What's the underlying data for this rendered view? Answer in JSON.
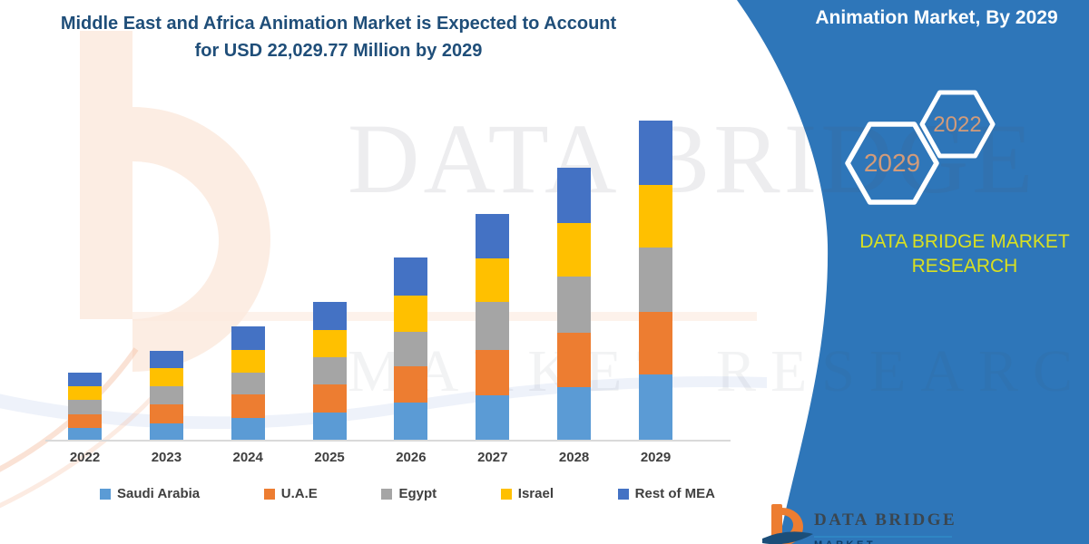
{
  "header": {
    "title_line1": "Middle East and Africa Animation Market is Expected to Account",
    "title_line2": "for USD 22,029.77 Million by 2029",
    "title_color": "#1f4e79"
  },
  "side_panel": {
    "heading": "Animation Market, By 2029",
    "panel_color": "#2e76b9",
    "hexagons": [
      {
        "label": "2029"
      },
      {
        "label": "2022"
      }
    ],
    "hexagon_label_color": "#d29b7a",
    "brand_line1": "DATA BRIDGE MARKET",
    "brand_line2": "RESEARCH",
    "brand_color": "#d9e021"
  },
  "watermark": {
    "line1": "DATA BRIDGE",
    "line2": "MARKET RESEARCH"
  },
  "footer_logo": {
    "line1": "DATA BRIDGE",
    "line2": "MARKET RESEARCH"
  },
  "chart_data": {
    "type": "bar",
    "stacked": true,
    "title": "Middle East and Africa Animation Market is Expected to Account for USD 22,029.77 Million by 2029",
    "unit": "USD Million",
    "categories": [
      "2022",
      "2023",
      "2024",
      "2025",
      "2026",
      "2027",
      "2028",
      "2029"
    ],
    "series": [
      {
        "name": "Saudi Arabia",
        "color": "#5B9BD5",
        "values": [
          830,
          1145,
          1520,
          1880,
          2565,
          3085,
          3650,
          4505
        ]
      },
      {
        "name": "U.A.E",
        "color": "#ED7D31",
        "values": [
          940,
          1315,
          1610,
          1920,
          2485,
          3110,
          3755,
          4320
        ]
      },
      {
        "name": "Egypt",
        "color": "#A5A5A5",
        "values": [
          980,
          1250,
          1520,
          1880,
          2420,
          3300,
          3860,
          4440
        ]
      },
      {
        "name": "Israel",
        "color": "#FFC000",
        "values": [
          955,
          1250,
          1520,
          1880,
          2480,
          3020,
          3690,
          4320
        ]
      },
      {
        "name": "Rest of MEA",
        "color": "#4472C4",
        "values": [
          920,
          1190,
          1670,
          1940,
          2610,
          3085,
          3820,
          4444.77
        ]
      }
    ],
    "totals": [
      4625,
      6150,
      7840,
      9500,
      12560,
      15600,
      18775,
      22029.77
    ],
    "ylim": [
      0,
      22029.77
    ],
    "grid": false,
    "y_axis_labels_visible": false,
    "legend_position": "bottom"
  }
}
